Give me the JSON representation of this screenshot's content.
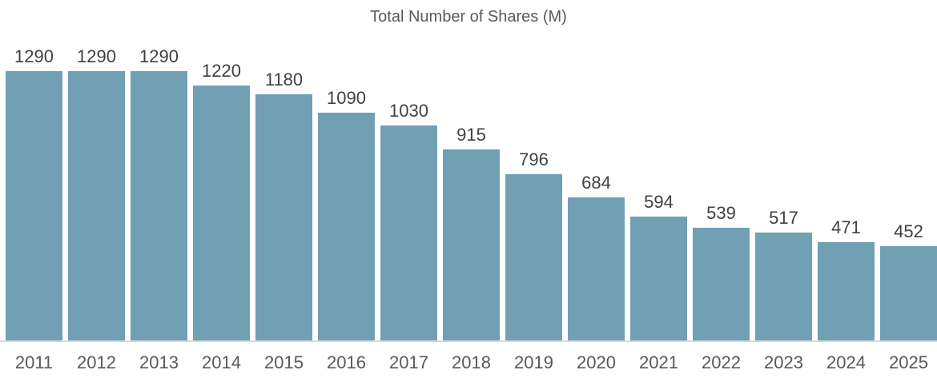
{
  "chart_data": {
    "type": "bar",
    "title": "Total Number of Shares (M)",
    "categories": [
      "2011",
      "2012",
      "2013",
      "2014",
      "2015",
      "2016",
      "2017",
      "2018",
      "2019",
      "2020",
      "2021",
      "2022",
      "2023",
      "2024",
      "2025"
    ],
    "values": [
      1290,
      1290,
      1290,
      1220,
      1180,
      1090,
      1030,
      915,
      796,
      684,
      594,
      539,
      517,
      471,
      452
    ],
    "xlabel": "",
    "ylabel": "",
    "ylim": [
      0,
      1290
    ],
    "grid": false,
    "legend": false,
    "data_labels_shown": true,
    "y_axis_shown": false
  },
  "colors": {
    "bar": "#719FB4",
    "title": "#595959",
    "data_label": "#404040",
    "axis_label": "#595959",
    "axis_line": "#D9D9D9",
    "background": "#FFFFFF"
  }
}
